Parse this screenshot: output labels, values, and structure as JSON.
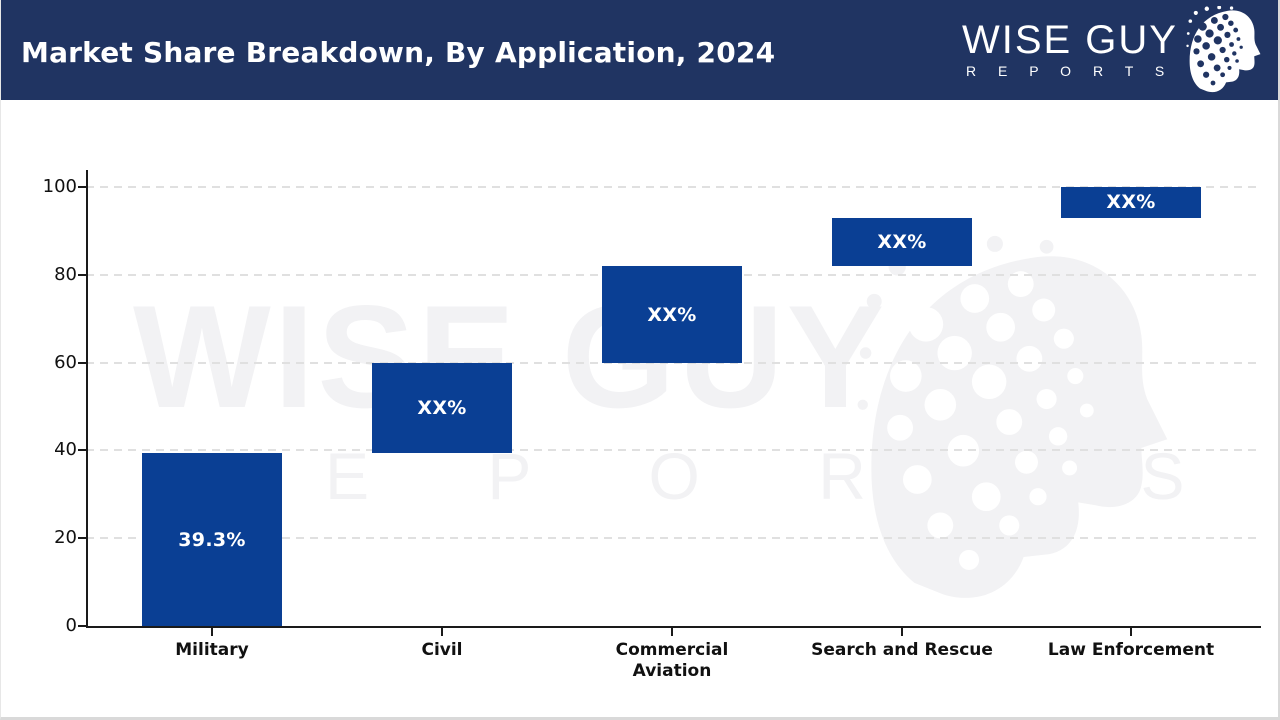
{
  "header": {
    "title": "Market Share Breakdown, By Application, 2024",
    "logo": {
      "wordmark": "WISE GUY",
      "subtext": "R E P O R T S"
    }
  },
  "watermark": {
    "wordmark": "WISE GUY",
    "subtext": "R E P O R T S"
  },
  "chart_data": {
    "type": "bar",
    "subtype": "waterfall-segments",
    "title": "Market Share Breakdown, By Application, 2024",
    "categories": [
      "Military",
      "Civil",
      "Commercial\nAviation",
      "Search and Rescue",
      "Law Enforcement"
    ],
    "segments": [
      {
        "category": "Military",
        "start": 0,
        "end": 39.3,
        "label": "39.3%"
      },
      {
        "category": "Civil",
        "start": 39.3,
        "end": 59.8,
        "label": "XX%"
      },
      {
        "category": "Commercial Aviation",
        "start": 59.8,
        "end": 82.0,
        "label": "XX%"
      },
      {
        "category": "Search and Rescue",
        "start": 82.0,
        "end": 93.0,
        "label": "XX%"
      },
      {
        "category": "Law Enforcement",
        "start": 93.0,
        "end": 100.0,
        "label": "XX%"
      }
    ],
    "y_ticks": [
      0,
      20,
      40,
      60,
      80,
      100
    ],
    "ylim": [
      0,
      104
    ],
    "xlabel": "",
    "ylabel": "",
    "grid": "horizontal-dashed",
    "legend": "none"
  },
  "colors": {
    "header_bg": "#203462",
    "bar": "#0a3f94",
    "grid": "#e0e0e0",
    "axis": "#1a1a1a",
    "watermark": "#f2f2f4"
  }
}
